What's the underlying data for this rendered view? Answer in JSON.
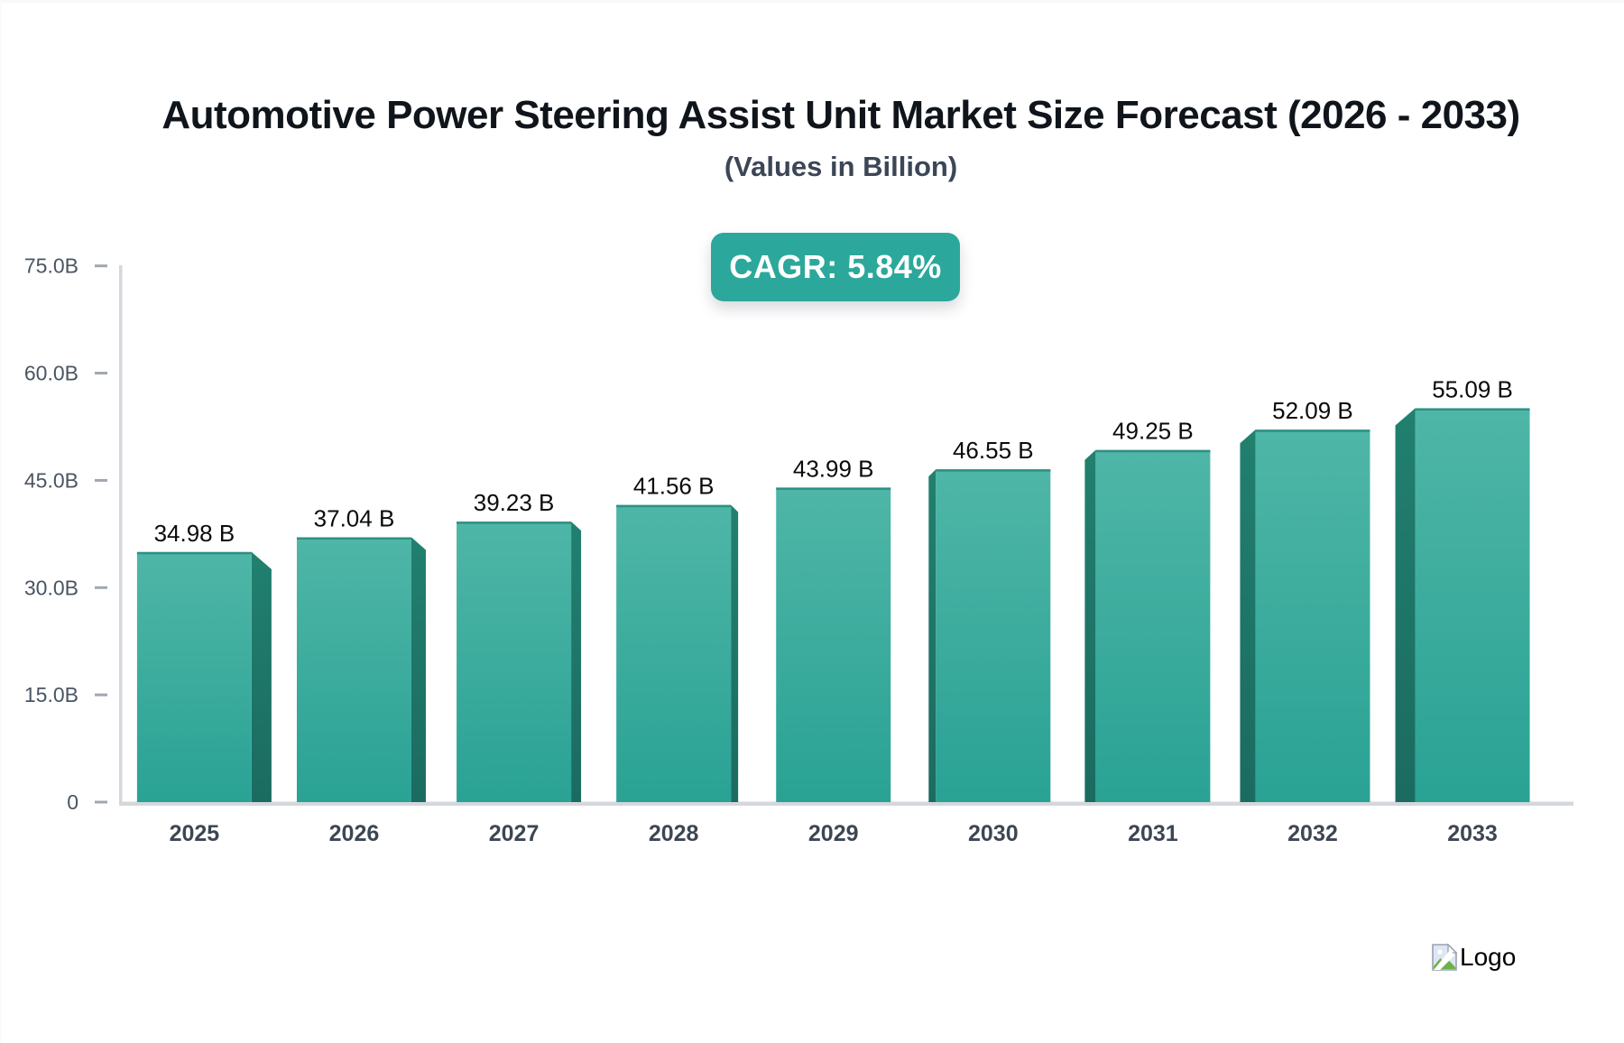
{
  "header": {
    "title": "Automotive Power Steering Assist Unit Market Size Forecast (2026 - 2033)",
    "subtitle": "(Values in Billion)",
    "cagr_badge": "CAGR: 5.84%"
  },
  "footer": {
    "logo_alt": "Logo"
  },
  "colors": {
    "badge_bg": "#2BA89B",
    "bar_front_top": "#4FB6A7",
    "bar_front_bottom": "#29A294",
    "bar_side_top": "#21806F",
    "bar_side_bottom": "#1B6B60",
    "bar_top_edge": "#2D9183",
    "axis_line": "#D4D7DC",
    "tick": "#A0A7B0",
    "tick_label": "#4A5563",
    "year_label": "#3D4653",
    "value_label": "#0B0B0B"
  },
  "chart_data": {
    "type": "bar",
    "title": "Automotive Power Steering Assist Unit Market Size Forecast (2026 - 2033)",
    "subtitle": "(Values in Billion)",
    "cagr_percent": 5.84,
    "categories": [
      "2025",
      "2026",
      "2027",
      "2028",
      "2029",
      "2030",
      "2031",
      "2032",
      "2033"
    ],
    "values": [
      34.98,
      37.04,
      39.23,
      41.56,
      43.99,
      46.55,
      49.25,
      52.09,
      55.09
    ],
    "value_labels": [
      "34.98 B",
      "37.04 B",
      "39.23 B",
      "41.56 B",
      "43.99 B",
      "46.55 B",
      "49.25 B",
      "52.09 B",
      "55.09 B"
    ],
    "xlabel": "",
    "ylabel": "",
    "ylim": [
      0,
      75
    ],
    "yticks": {
      "values": [
        0,
        15,
        30,
        45,
        60,
        75
      ],
      "labels": [
        "0",
        "15.0B",
        "30.0B",
        "45.0B",
        "60.0B",
        "75.0B"
      ]
    },
    "grid": false,
    "legend": null,
    "bar_style": "3d-extruded"
  }
}
